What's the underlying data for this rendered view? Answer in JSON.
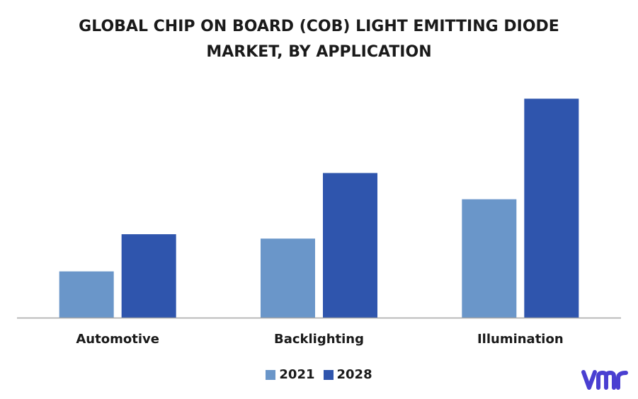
{
  "chart_data": {
    "type": "bar",
    "title_lines": [
      "GLOBAL CHIP ON BOARD (COB) LIGHT EMITTING DIODE",
      "MARKET, BY APPLICATION"
    ],
    "categories": [
      "Automotive",
      "Backlighting",
      "Illumination"
    ],
    "series": [
      {
        "name": "2021",
        "values": [
          21,
          36,
          54
        ],
        "color": "#6a96c9"
      },
      {
        "name": "2028",
        "values": [
          38,
          66,
          100
        ],
        "color": "#2f55ad"
      }
    ],
    "ylim": [
      0,
      100
    ],
    "grid": false,
    "y_axis_visible": false,
    "legend_position": "bottom",
    "axis_color": "#a6a6a6"
  },
  "brand": {
    "logo_text": "vmr",
    "logo_color": "#4a3fd1"
  }
}
